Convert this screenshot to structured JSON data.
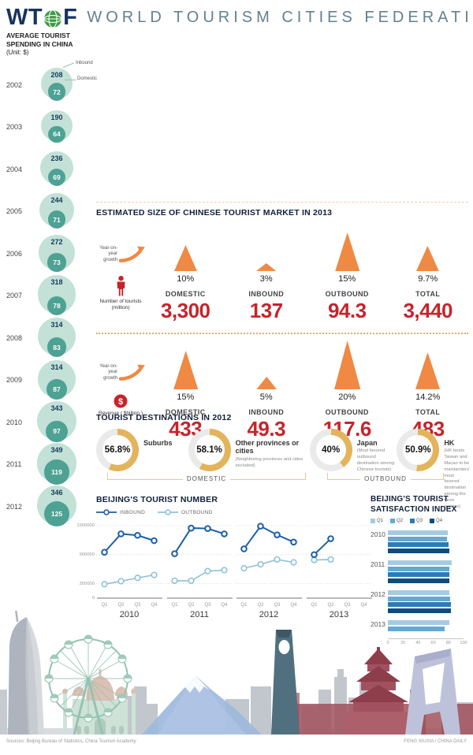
{
  "header": {
    "logo_wt": "WT",
    "logo_f": "F",
    "title": "WORLD TOURISM CITIES FEDERATION"
  },
  "colors": {
    "accent_orange": "#ef8943",
    "red": "#c8232b",
    "bubble_outer_teal": "#c3e1d7",
    "bubble_inner_teal": "#4da294",
    "donut_gold": "#e2b45c",
    "donut_track": "#eaeaea",
    "inbound_blue": "#1c5fa8",
    "outbound_blue": "#8fc1dd",
    "quarter_blues": [
      "#a5cbe2",
      "#64a9d2",
      "#2b7cb4",
      "#0d4d7d"
    ]
  },
  "chart_data": [
    {
      "id": "spending",
      "type": "bubble",
      "title": "AVERAGE TOURIST SPENDING IN CHINA",
      "unit": "(Unit: $)",
      "series_labels": {
        "outer": "Inbound",
        "inner": "Domestic"
      },
      "years": [
        "2002",
        "2003",
        "2004",
        "2005",
        "2006",
        "2007",
        "2008",
        "2009",
        "2010",
        "2011",
        "2012"
      ],
      "inbound": [
        208,
        190,
        236,
        244,
        272,
        318,
        314,
        314,
        343,
        349,
        346
      ],
      "domestic": [
        72,
        64,
        69,
        71,
        73,
        78,
        83,
        87,
        97,
        119,
        125
      ]
    },
    {
      "id": "market2013",
      "type": "table",
      "title": "ESTIMATED SIZE OF CHINESE TOURIST MARKET IN 2013",
      "growth_icon_label": "Year-on-year growth",
      "rows": [
        {
          "metric_icon": "person-icon",
          "metric_label": "Number of tourists (million)",
          "columns": [
            {
              "category": "DOMESTIC",
              "growth_pct": 10,
              "growth_label": "10%",
              "value": "3,300"
            },
            {
              "category": "INBOUND",
              "growth_pct": 3,
              "growth_label": "3%",
              "value": "137"
            },
            {
              "category": "OUTBOUND",
              "growth_pct": 15,
              "growth_label": "15%",
              "value": "94.3"
            },
            {
              "category": "TOTAL",
              "growth_pct": 9.7,
              "growth_label": "9.7%",
              "value": "3,440"
            }
          ]
        },
        {
          "metric_icon": "dollar-icon",
          "metric_label": "Revenue ( $billion )",
          "columns": [
            {
              "category": "DOMESTIC",
              "growth_pct": 15,
              "growth_label": "15%",
              "value": "433"
            },
            {
              "category": "INBOUND",
              "growth_pct": 5,
              "growth_label": "5%",
              "value": "49.3"
            },
            {
              "category": "OUTBOUND",
              "growth_pct": 20,
              "growth_label": "20%",
              "value": "117.6"
            },
            {
              "category": "TOTAL",
              "growth_pct": 14.2,
              "growth_label": "14.2%",
              "value": "483"
            }
          ]
        }
      ]
    },
    {
      "id": "destinations",
      "type": "pie",
      "title": "TOURIST DESTINATIONS IN 2012",
      "groups": [
        "DOMESTIC",
        "OUTBOUND"
      ],
      "items": [
        {
          "pct": 56.8,
          "pct_label": "56.8%",
          "label": "Suburbs",
          "note": "",
          "group": "DOMESTIC"
        },
        {
          "pct": 58.1,
          "pct_label": "58.1%",
          "label": "Other provinces or cities",
          "note": "(Neighboring provinces and cities excluded)",
          "group": "DOMESTIC"
        },
        {
          "pct": 40,
          "pct_label": "40%",
          "label": "Japan",
          "note": "(Most favored outbound destination among Chinese tourists)",
          "group": "OUTBOUND"
        },
        {
          "pct": 50.9,
          "pct_label": "50.9%",
          "label": "HK",
          "note": "(HK beats Taiwan and Macao to be mainlanders' most favored destination among the three regions)",
          "group": "OUTBOUND"
        }
      ]
    },
    {
      "id": "tourist_number",
      "type": "line",
      "title": "BEIJING'S TOURIST NUMBER",
      "legend": [
        "INBOUND",
        "OUTBOUND"
      ],
      "ylim": [
        0,
        1500000
      ],
      "ytick_labels": [
        "1500000",
        "900000",
        "300000",
        "0"
      ],
      "yticks": [
        1500000,
        900000,
        300000,
        0
      ],
      "x_labels": [
        "Q1",
        "Q2",
        "Q3",
        "Q4"
      ],
      "panels": [
        {
          "year": "2010",
          "inbound": [
            950000,
            1330000,
            1300000,
            1190000
          ],
          "outbound": [
            290000,
            350000,
            420000,
            480000
          ]
        },
        {
          "year": "2011",
          "inbound": [
            920000,
            1450000,
            1440000,
            1330000
          ],
          "outbound": [
            360000,
            360000,
            560000,
            580000
          ]
        },
        {
          "year": "2012",
          "inbound": [
            1020000,
            1490000,
            1310000,
            1160000
          ],
          "outbound": [
            620000,
            700000,
            800000,
            740000
          ]
        },
        {
          "year": "2013",
          "inbound": [
            900000,
            1230000
          ],
          "outbound": [
            790000,
            800000
          ]
        }
      ]
    },
    {
      "id": "satisfaction",
      "type": "bar",
      "title": "BEIJING'S TOURIST SATISFACTION INDEX",
      "legend": [
        "Q1",
        "Q2",
        "Q3",
        "Q4"
      ],
      "xticks": [
        0,
        20,
        40,
        60,
        80,
        100
      ],
      "xlim": [
        0,
        100
      ],
      "groups": [
        {
          "year": "2010",
          "values": [
            79.03,
            78.5,
            79.72,
            81.53
          ]
        },
        {
          "year": "2011",
          "values": [
            84.06,
            80.95,
            80.98,
            81.61
          ]
        },
        {
          "year": "2012",
          "values": [
            81.4,
            82.3,
            83.58,
            83.65
          ]
        },
        {
          "year": "2013",
          "values": [
            80.97,
            75.28
          ]
        }
      ]
    }
  ],
  "footer": {
    "sources": "Sources: Beijing Bureau of Statistics, China Tourism Academy",
    "credit": "FENG XIUXIA / CHINA DAILY"
  }
}
